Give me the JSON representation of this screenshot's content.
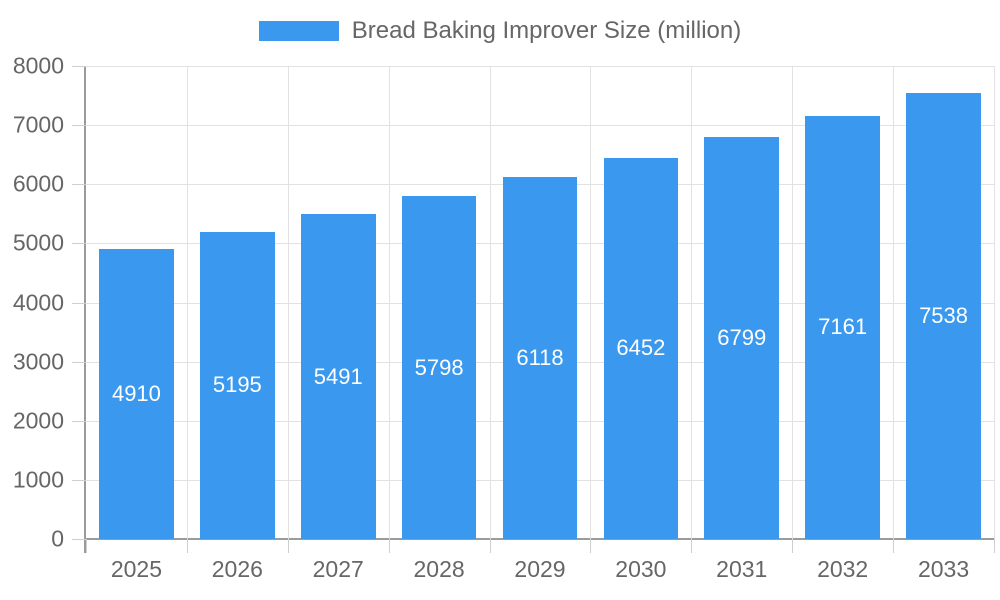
{
  "legend": {
    "label": "Bread Baking Improver Size (million)"
  },
  "chart_data": {
    "type": "bar",
    "title": "Bread Baking Improver Size (million)",
    "categories": [
      "2025",
      "2026",
      "2027",
      "2028",
      "2029",
      "2030",
      "2031",
      "2032",
      "2033"
    ],
    "values": [
      4910,
      5195,
      5491,
      5798,
      6118,
      6452,
      6799,
      7161,
      7538
    ],
    "xlabel": "",
    "ylabel": "",
    "ylim": [
      0,
      8000
    ],
    "yticks": [
      0,
      1000,
      2000,
      3000,
      4000,
      5000,
      6000,
      7000,
      8000
    ],
    "grid": true,
    "legend_position": "top-center",
    "value_labels": "inside-center",
    "colors": {
      "bar": "#3A99EE",
      "value_label": "#ffffff",
      "axis_label": "#666666",
      "legend_text": "#666666",
      "gridline": "#e2e2e2",
      "axis_line": "#9b9b9b",
      "background": "#ffffff"
    }
  }
}
